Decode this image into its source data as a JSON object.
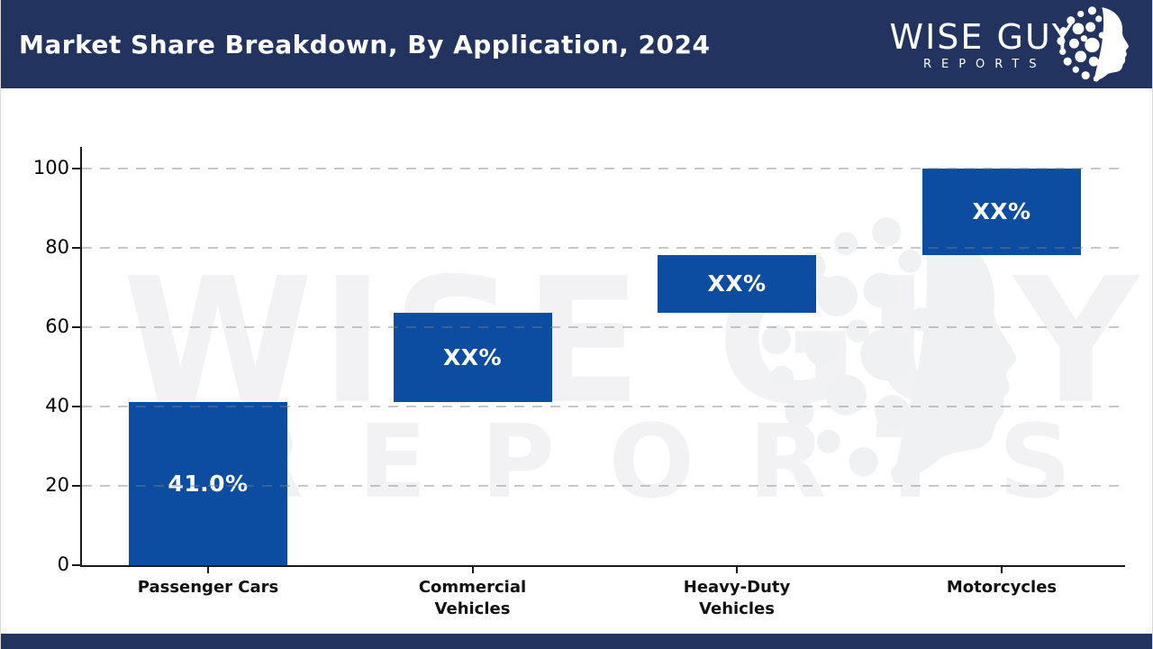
{
  "header": {
    "title": "Market Share Breakdown, By Application, 2024",
    "logo": {
      "line1": "WISE GUY",
      "line2": "REPORTS"
    },
    "bg_color": "#21335e"
  },
  "watermark": {
    "row1": "WISE GUY",
    "row2": "REPORTS"
  },
  "chart_data": {
    "type": "bar",
    "subtype": "floating-waterfall",
    "title": "Market Share Breakdown, By Application, 2024",
    "xlabel": "",
    "ylabel": "",
    "ylim": [
      0,
      100
    ],
    "yticks": [
      0,
      20,
      40,
      60,
      80,
      100
    ],
    "grid": "horizontal-dashed",
    "grid_over_bars": true,
    "bar_color": "#0c4da2",
    "categories": [
      "Passenger Cars",
      "Commercial Vehicles",
      "Heavy-Duty Vehicles",
      "Motorcycles"
    ],
    "bars": [
      {
        "category": "Passenger Cars",
        "label_lines": [
          "Passenger Cars"
        ],
        "start": 0,
        "end": 41,
        "value": 41.0,
        "value_label": "41.0%"
      },
      {
        "category": "Commercial Vehicles",
        "label_lines": [
          "Commercial",
          "Vehicles"
        ],
        "start": 41,
        "end": 63.5,
        "value": 22.5,
        "value_label": "XX%"
      },
      {
        "category": "Heavy-Duty Vehicles",
        "label_lines": [
          "Heavy-Duty",
          "Vehicles"
        ],
        "start": 63.5,
        "end": 78.2,
        "value": 14.7,
        "value_label": "XX%"
      },
      {
        "category": "Motorcycles",
        "label_lines": [
          "Motorcycles"
        ],
        "start": 78.2,
        "end": 100,
        "value": 21.8,
        "value_label": "XX%"
      }
    ]
  }
}
